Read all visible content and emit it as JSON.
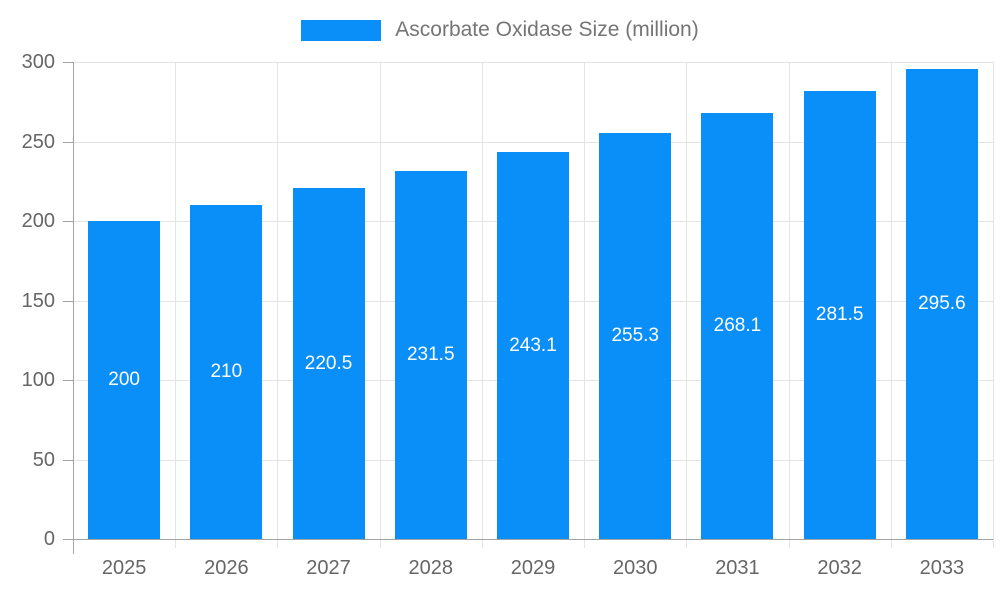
{
  "legend": {
    "label": "Ascorbate Oxidase Size (million)"
  },
  "chart_data": {
    "type": "bar",
    "title": "Ascorbate Oxidase Size (million)",
    "categories": [
      "2025",
      "2026",
      "2027",
      "2028",
      "2029",
      "2030",
      "2031",
      "2032",
      "2033"
    ],
    "values": [
      200,
      210,
      220.5,
      231.5,
      243.1,
      255.3,
      268.1,
      281.5,
      295.6
    ],
    "value_labels": [
      "200",
      "210",
      "220.5",
      "231.5",
      "243.1",
      "255.3",
      "268.1",
      "281.5",
      "295.6"
    ],
    "xlabel": "",
    "ylabel": "",
    "ylim": [
      0,
      300
    ],
    "yticks": [
      0,
      50,
      100,
      150,
      200,
      250,
      300
    ],
    "grid": true,
    "legend_position": "top-center"
  },
  "colors": {
    "bar": "#0a8ef8",
    "axis": "#a3a3a3",
    "grid": "#e4e4e4",
    "axis_text": "#666666",
    "legend_text": "#757575",
    "value_label_text": "#ffffff",
    "background": "#ffffff"
  }
}
